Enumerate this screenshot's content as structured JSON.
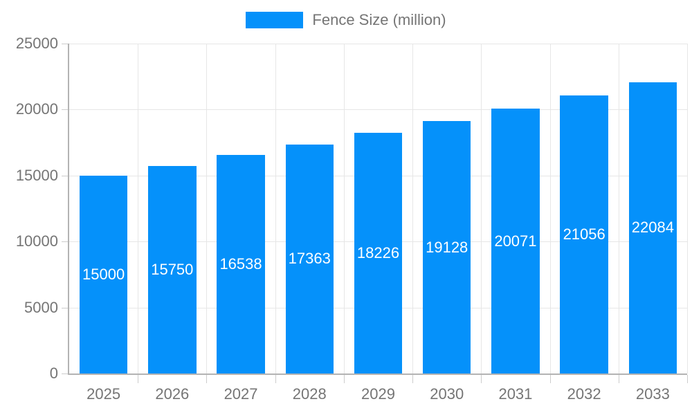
{
  "legend": {
    "label": "Fence Size (million)"
  },
  "colors": {
    "bar": "#0591fa",
    "grid": "#e6e6e6",
    "axis": "#b3b3b3",
    "tick": "#cccccc",
    "text": "#757575",
    "bar_label": "#ffffff",
    "background": "#ffffff"
  },
  "chart_data": {
    "type": "bar",
    "title": "",
    "categories": [
      "2025",
      "2026",
      "2027",
      "2028",
      "2029",
      "2030",
      "2031",
      "2032",
      "2033"
    ],
    "series": [
      {
        "name": "Fence Size (million)",
        "values": [
          15000,
          15750,
          16538,
          17363,
          18226,
          19128,
          20071,
          21056,
          22084
        ]
      }
    ],
    "xlabel": "",
    "ylabel": "",
    "ylim": [
      0,
      25000
    ],
    "yticks": [
      0,
      5000,
      10000,
      15000,
      20000,
      25000
    ],
    "grid": true,
    "legend_position": "top",
    "value_labels": "inside-center"
  }
}
